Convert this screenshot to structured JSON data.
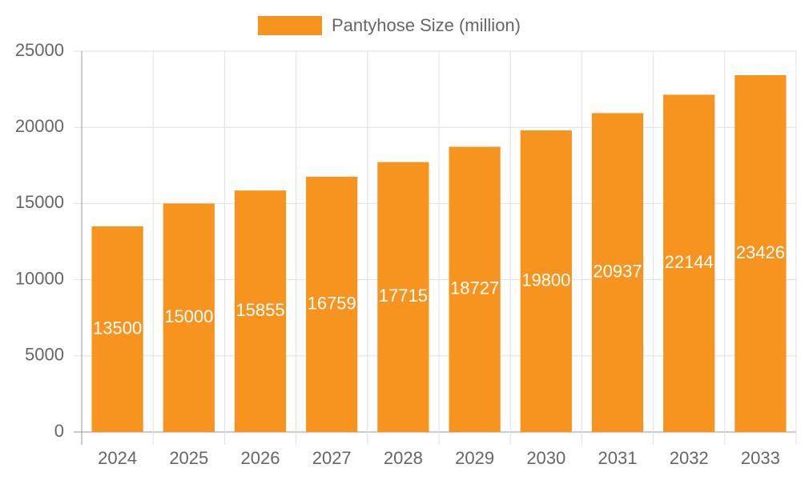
{
  "chart_data": {
    "type": "bar",
    "categories": [
      "2024",
      "2025",
      "2026",
      "2027",
      "2028",
      "2029",
      "2030",
      "2031",
      "2032",
      "2033"
    ],
    "series": [
      {
        "name": "Pantyhose Size (million)",
        "color": "#f7941f",
        "values": [
          13500,
          15000,
          15855,
          16759,
          17715,
          18727,
          19800,
          20937,
          22144,
          23426
        ]
      }
    ],
    "ylim": [
      0,
      25000
    ],
    "yticks": [
      0,
      5000,
      10000,
      15000,
      20000,
      25000
    ],
    "grid": true,
    "legend": "top"
  }
}
